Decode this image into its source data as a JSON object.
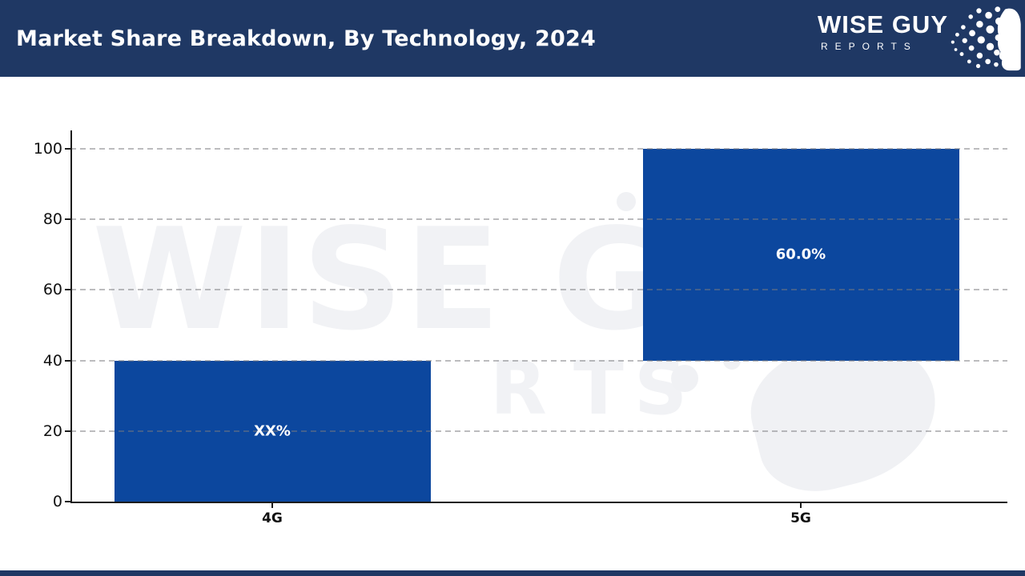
{
  "header": {
    "title": "Market Share Breakdown, By Technology, 2024",
    "bg_color": "#1f3864",
    "brand": {
      "line1": "WISE GUY",
      "line2": "REPORTS"
    }
  },
  "watermark": {
    "big_text": "WISE GUY",
    "letters": [
      "R",
      "T",
      "S"
    ]
  },
  "chart_data": {
    "type": "bar",
    "title": "Market Share Breakdown, By Technology, 2024",
    "categories": [
      "4G",
      "5G"
    ],
    "values": [
      40,
      60
    ],
    "bar_segments": [
      {
        "category": "4G",
        "from": 0,
        "to": 40,
        "label": "XX%"
      },
      {
        "category": "5G",
        "from": 40,
        "to": 100,
        "label": "60.0%"
      }
    ],
    "xlabel": "",
    "ylabel": "",
    "ylim": [
      0,
      105
    ],
    "yticks": [
      0,
      20,
      40,
      60,
      80,
      100
    ],
    "grid": "horizontal-dashed",
    "legend": "none",
    "bar_color": "#0c479e",
    "bar_label_color": "#ffffff",
    "axis_color": "#1c1c1c"
  }
}
